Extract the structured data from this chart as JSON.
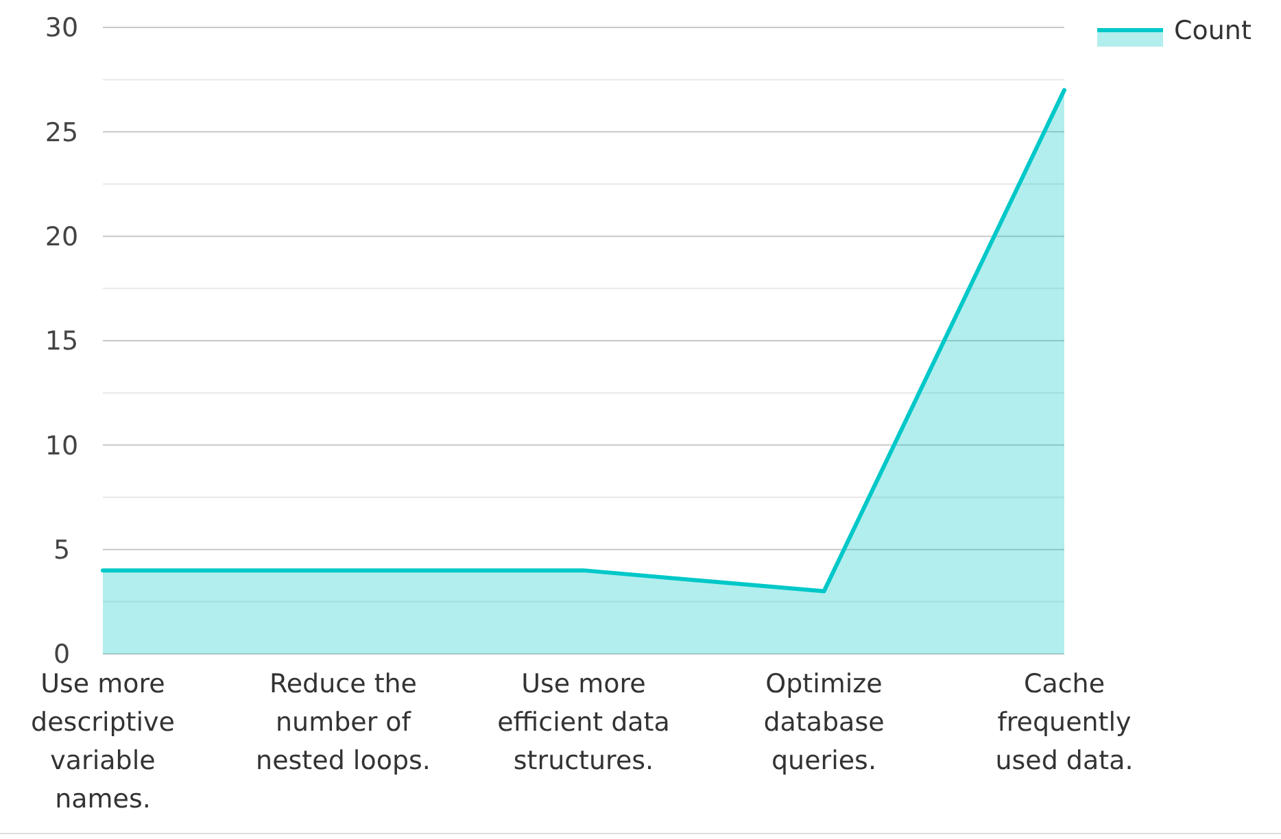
{
  "chart_data": {
    "type": "area",
    "categories": [
      "Use more descriptive variable names.",
      "Reduce the number of nested loops.",
      "Use more efficient data structures.",
      "Optimize database queries.",
      "Cache frequently used data."
    ],
    "series": [
      {
        "name": "Count",
        "color": "#00c8c8",
        "values": [
          4,
          4,
          4,
          3,
          27
        ]
      }
    ],
    "ylim": [
      0,
      30
    ],
    "yticks": [
      0,
      {
        "value": 2.5,
        "label": null
      },
      5,
      {
        "value": 7.5,
        "label": null
      },
      10,
      {
        "value": 12.5,
        "label": null
      },
      15,
      {
        "value": 17.5,
        "label": null
      },
      20,
      {
        "value": 22.5,
        "label": null
      },
      25,
      {
        "value": 27.5,
        "label": null
      },
      30
    ],
    "grid": "y",
    "legend": "top right"
  }
}
